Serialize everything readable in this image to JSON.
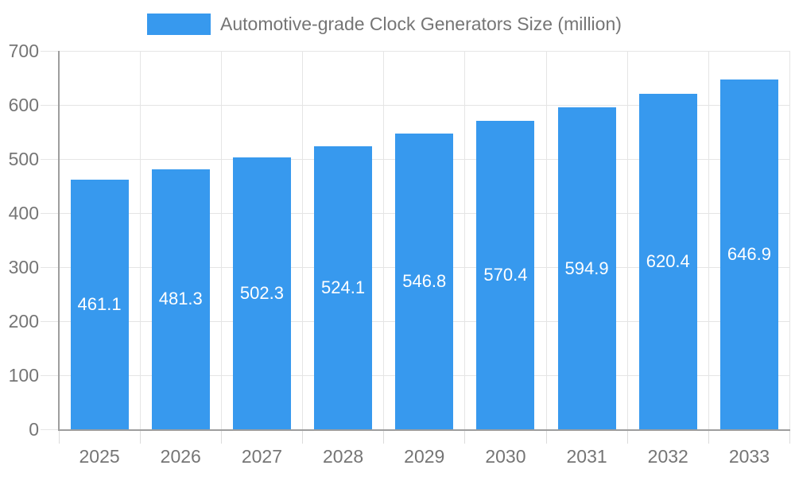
{
  "legend": {
    "label": "Automotive-grade Clock Generators Size (million)"
  },
  "chart_data": {
    "type": "bar",
    "title": "Automotive-grade Clock Generators Size (million)",
    "categories": [
      "2025",
      "2026",
      "2027",
      "2028",
      "2029",
      "2030",
      "2031",
      "2032",
      "2033"
    ],
    "values": [
      461.1,
      481.3,
      502.3,
      524.1,
      546.8,
      570.4,
      594.9,
      620.4,
      646.9
    ],
    "value_labels": [
      "461.1",
      "481.3",
      "502.3",
      "524.1",
      "546.8",
      "570.4",
      "594.9",
      "620.4",
      "646.9"
    ],
    "xlabel": "",
    "ylabel": "",
    "ylim": [
      0,
      700
    ],
    "yticks": [
      0,
      100,
      200,
      300,
      400,
      500,
      600,
      700
    ],
    "ytick_labels": [
      "0",
      "100",
      "200",
      "300",
      "400",
      "500",
      "600",
      "700"
    ],
    "grid": true,
    "legend_position": "top",
    "colors": {
      "bar": "#3799ee",
      "value_label": "#ffffff",
      "axis": "#9e9e9e",
      "grid": "#e5e5e5",
      "tick_label": "#757575",
      "legend_text": "#757575",
      "background": "#ffffff"
    }
  }
}
